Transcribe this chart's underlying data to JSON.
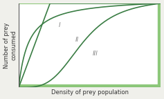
{
  "title": "",
  "xlabel": "Density of prey population",
  "ylabel": "Number of prey\nconsumed",
  "curve_color": "#3a7d44",
  "border_color": "#8dc87a",
  "background_color": "#f0f0eb",
  "plot_bg": "#ffffff",
  "label_I": "I",
  "label_II": "II",
  "label_III": "III",
  "label_color": "#888888",
  "xlim": [
    0,
    1
  ],
  "ylim": [
    0,
    1
  ]
}
